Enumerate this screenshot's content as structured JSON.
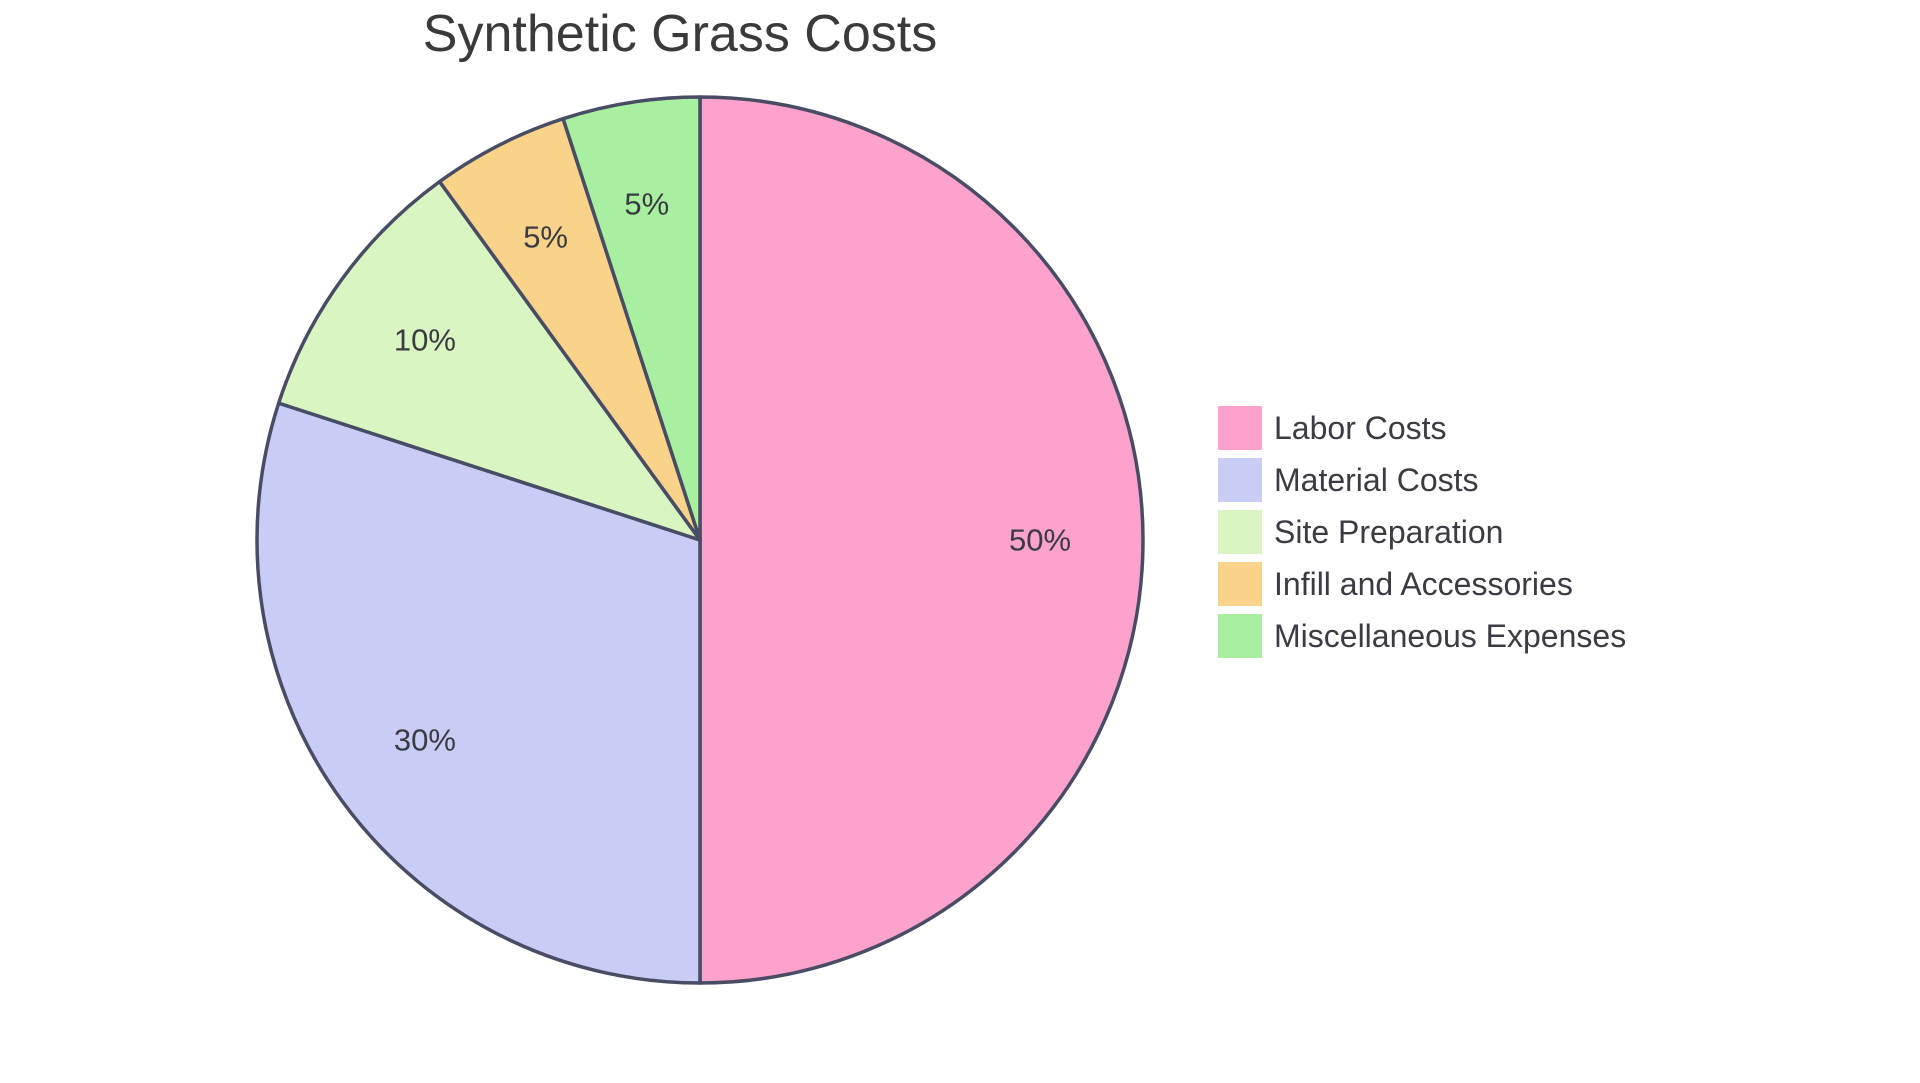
{
  "chart_data": {
    "type": "pie",
    "title": "Synthetic Grass Costs",
    "direction": "clockwise",
    "start_angle_deg": 0,
    "legend_position": "right",
    "grid": false,
    "stroke_color": "#484C64",
    "label_color": "#3B3B43",
    "title_color": "#3A3A3A",
    "background_color": "#FFFFFF",
    "categories": [
      "Labor Costs",
      "Material Costs",
      "Site Preparation",
      "Infill and Accessories",
      "Miscellaneous Expenses"
    ],
    "values": [
      50,
      30,
      10,
      5,
      5
    ],
    "slices": [
      {
        "label": "Labor Costs",
        "value": 50,
        "pct_label": "50%",
        "color": "#FCA2CC"
      },
      {
        "label": "Material Costs",
        "value": 30,
        "pct_label": "30%",
        "color": "#C9CDF6"
      },
      {
        "label": "Site Preparation",
        "value": 10,
        "pct_label": "10%",
        "color": "#D8F5C2"
      },
      {
        "label": "Infill and Accessories",
        "value": 5,
        "pct_label": "5%",
        "color": "#FAD38A"
      },
      {
        "label": "Miscellaneous Expenses",
        "value": 5,
        "pct_label": "5%",
        "color": "#A8F0A0"
      }
    ]
  }
}
